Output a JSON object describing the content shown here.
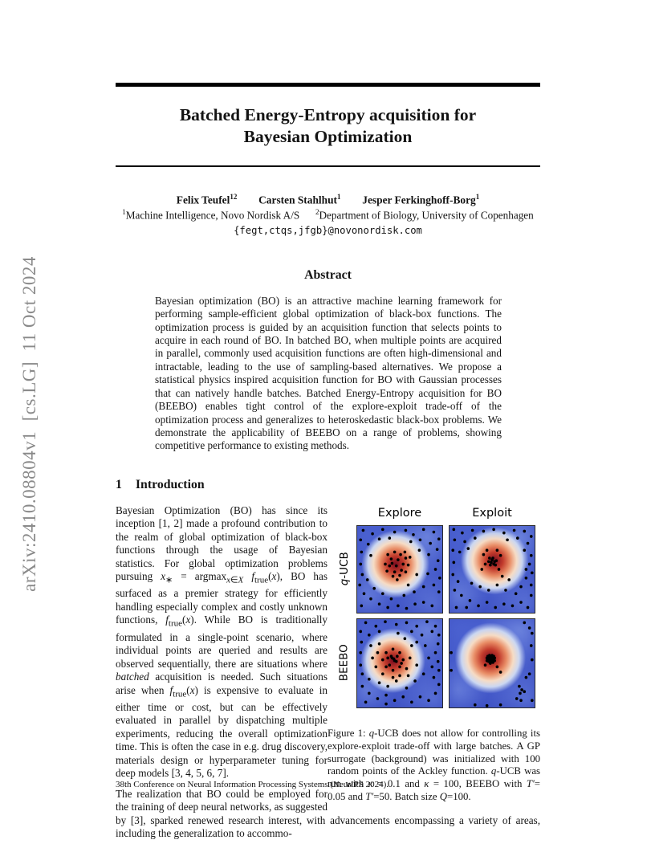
{
  "arxiv_stamp": "arXiv:2410.08804v1  [cs.LG]  11 Oct 2024",
  "title": {
    "lines": [
      "Batched Energy-Entropy acquisition for",
      "Bayesian Optimization"
    ]
  },
  "authors": {
    "names_html": "Felix Teufel<sup>12</sup>&emsp;&emsp;Carsten Stahlhut<sup>1</sup>&emsp;&emsp;Jesper Ferkinghoff-Borg<sup>1</sup>",
    "affiliations_html": "<sup>1</sup>Machine Intelligence, Novo Nordisk A/S&emsp;&ensp;<sup>2</sup>Department of Biology, University of Copenhagen",
    "email": "{fegt,ctqs,jfgb}@novonordisk.com"
  },
  "abstract": {
    "heading": "Abstract",
    "body": "Bayesian optimization (BO) is an attractive machine learning framework for performing sample-efficient global optimization of black-box functions. The optimization process is guided by an acquisition function that selects points to acquire in each round of BO. In batched BO, when multiple points are acquired in parallel, commonly used acquisition functions are often high-dimensional and intractable, leading to the use of sampling-based alternatives. We propose a statistical physics inspired acquisition function for BO with Gaussian processes that can natively handle batches. Batched Energy-Entropy acquisition for BO (BEEBO) enables tight control of the explore-exploit trade-off of the optimization process and generalizes to heteroskedastic black-box problems. We demonstrate the applicability of BEEBO on a range of problems, showing competitive performance to existing methods."
  },
  "section1": {
    "number": "1",
    "title": "Introduction"
  },
  "intro": {
    "p1_html": "Bayesian Optimization (BO) has since its inception [1, 2] made a profound contribution to the realm of global optimization of black-box functions through the usage of Bayesian statistics. For global optimization problems pursuing <i>x</i><sub>∗</sub> = argmax<sub><i>x</i>∈<i>X</i></sub> <i>f</i><sub>true</sub>(<i>x</i>), BO has surfaced as a premier strategy for efficiently handling especially complex and costly unknown functions, <i>f</i><sub>true</sub>(<i>x</i>). While BO is traditionally formulated in a single-point scenario, where individual points are queried and results are observed sequentially, there are situations where <i>batched</i> acquisition is needed. Such situations arise when <i>f</i><sub>true</sub>(<i>x</i>) is expensive to evaluate in either time or cost, but can be effectively evaluated in parallel by dispatching multiple experiments, reducing the overall optimization time. This is often the case in e.g. drug discovery, materials design or hyperparameter tuning for deep models [3, 4, 5, 6, 7].",
    "p2_html": "The realization that BO could be employed for the training of deep neural networks, as suggested by [3], sparked renewed research interest, with advancements encompassing a variety of areas, including the generalization to accommo-"
  },
  "figure1": {
    "caption_html": "Figure 1: <i>q</i>-UCB does not allow for controlling its explore-exploit trade-off with large batches. A GP surrogate (background) was initialized with 100 random points of the Ackley function. <i>q</i>-UCB was run with <i>κ</i> = 0.1 and <i>κ</i> = 100, BEEBO with <i>T′</i>= 0.05 and <i>T′</i>=50. Batch size <i>Q</i>=100."
  },
  "footer": "38th Conference on Neural Information Processing Systems (NeurIPS 2024).",
  "chart_data": {
    "type": "heatmap",
    "figure_label": "Figure 1",
    "col_labels": [
      "Explore",
      "Exploit"
    ],
    "row_labels": [
      "q-UCB",
      "BEEBO"
    ],
    "row_labels_html": [
      "<i>q</i>-UCB",
      "BEEBO"
    ],
    "background": "GP surrogate mean on Ackley function, coolwarm colormap; black dots are acquired batch points",
    "colors": {
      "hot": "#7a0c20",
      "warm": "#c23b2c",
      "salmon": "#e98e67",
      "cream": "#f6dcc5",
      "pale": "#ccd8f2",
      "blue_base": "#4156c8",
      "blue_deep": "#3b4cc0",
      "blue_light": "#7289e0",
      "dot": "#000000",
      "border": "#2a2a2a"
    },
    "panels": [
      {
        "row": "q-UCB",
        "col": "Explore",
        "hotspot": [
          45,
          44
        ],
        "radius": 44,
        "points": [
          7,
          5,
          18,
          9,
          30,
          4,
          44,
          7,
          57,
          5,
          66,
          10,
          78,
          4,
          90,
          7,
          96,
          15,
          4,
          16,
          13,
          21,
          26,
          15,
          38,
          14,
          63,
          18,
          74,
          16,
          86,
          20,
          94,
          27,
          5,
          30,
          16,
          34,
          73,
          28,
          84,
          33,
          95,
          40,
          4,
          44,
          92,
          50,
          97,
          60,
          6,
          56,
          3,
          68,
          12,
          62,
          90,
          68,
          96,
          76,
          8,
          78,
          16,
          84,
          26,
          90,
          5,
          92,
          36,
          94,
          48,
          92,
          58,
          95,
          68,
          90,
          78,
          88,
          88,
          92,
          40,
          84,
          55,
          80,
          67,
          76,
          78,
          70,
          30,
          78,
          20,
          72,
          60,
          68,
          70,
          56,
          83,
          55,
          36,
          33,
          44,
          30,
          51,
          33,
          57,
          37,
          60,
          45,
          57,
          53,
          50,
          57,
          42,
          58,
          35,
          52,
          33,
          44,
          40,
          38,
          48,
          39,
          54,
          44,
          52,
          51,
          44,
          53,
          38,
          46,
          46,
          46,
          41,
          43,
          56,
          30,
          62,
          36,
          47,
          62
        ]
      },
      {
        "row": "q-UCB",
        "col": "Exploit",
        "hotspot": [
          53,
          40
        ],
        "radius": 44,
        "points": [
          5,
          4,
          15,
          8,
          27,
          5,
          40,
          6,
          52,
          4,
          64,
          8,
          76,
          5,
          88,
          6,
          96,
          12,
          6,
          16,
          18,
          18,
          30,
          14,
          68,
          16,
          80,
          14,
          92,
          20,
          4,
          28,
          12,
          30,
          22,
          26,
          88,
          28,
          96,
          34,
          5,
          42,
          94,
          44,
          97,
          54,
          4,
          56,
          10,
          64,
          90,
          60,
          96,
          68,
          6,
          74,
          14,
          80,
          24,
          86,
          34,
          92,
          44,
          88,
          54,
          94,
          64,
          90,
          74,
          92,
          84,
          88,
          92,
          94,
          96,
          80,
          78,
          78,
          66,
          74,
          56,
          68,
          46,
          74,
          36,
          70,
          26,
          66,
          84,
          70,
          70,
          62,
          62,
          58,
          20,
          94,
          8,
          94,
          90,
          50,
          47,
          37,
          50,
          39,
          53,
          41,
          49,
          42,
          52,
          44,
          55,
          40,
          46,
          41,
          51,
          37,
          54,
          45,
          48,
          45,
          40,
          33,
          42,
          44,
          58,
          50,
          38,
          50,
          60,
          34,
          44,
          28,
          56,
          28
        ]
      },
      {
        "row": "BEEBO",
        "col": "Explore",
        "hotspot": [
          42,
          47
        ],
        "radius": 42,
        "points": [
          10,
          4,
          22,
          8,
          33,
          3,
          46,
          6,
          58,
          4,
          70,
          8,
          82,
          3,
          92,
          8,
          96,
          18,
          4,
          14,
          14,
          18,
          26,
          14,
          64,
          14,
          76,
          18,
          88,
          14,
          95,
          28,
          5,
          26,
          16,
          30,
          26,
          28,
          70,
          26,
          80,
          30,
          92,
          38,
          4,
          38,
          95,
          48,
          4,
          52,
          96,
          58,
          6,
          62,
          14,
          68,
          90,
          66,
          96,
          74,
          6,
          76,
          14,
          84,
          24,
          90,
          34,
          86,
          44,
          92,
          54,
          88,
          64,
          94,
          74,
          88,
          84,
          92,
          92,
          84,
          34,
          96,
          10,
          94,
          58,
          78,
          68,
          70,
          78,
          62,
          60,
          64,
          70,
          52,
          62,
          44,
          58,
          56,
          26,
          72,
          36,
          76,
          46,
          70,
          30,
          62,
          22,
          54,
          18,
          44,
          24,
          38,
          84,
          44,
          88,
          54,
          50,
          64,
          42,
          66,
          64,
          30,
          56,
          22,
          48,
          16,
          40,
          42,
          43,
          45,
          46,
          48,
          44,
          47,
          41,
          44,
          34,
          38,
          42,
          34,
          50,
          38,
          54,
          46,
          50,
          54,
          42,
          58,
          34,
          54,
          30,
          46,
          38,
          52,
          47,
          42,
          52,
          50,
          36,
          44
        ]
      },
      {
        "row": "BEEBO",
        "col": "Exploit",
        "hotspot": [
          48,
          44
        ],
        "radius": 46,
        "points": [
          45,
          42,
          47,
          41,
          49,
          42,
          51,
          43,
          46,
          44,
          48,
          44,
          50,
          44,
          52,
          45,
          45,
          46,
          47,
          46,
          49,
          46,
          51,
          47,
          46,
          48,
          48,
          48,
          50,
          48,
          53,
          44,
          44,
          44,
          48,
          42,
          50,
          41,
          47,
          43,
          49,
          45,
          51,
          45,
          46,
          45,
          44,
          47,
          52,
          42,
          53,
          47,
          48,
          50,
          51,
          49,
          42,
          52,
          56,
          54,
          60,
          60,
          2,
          38,
          2,
          58,
          94,
          10,
          97,
          16,
          88,
          4,
          96,
          30,
          97,
          46,
          94,
          62,
          90,
          66,
          82,
          76,
          85,
          80,
          83,
          84,
          88,
          82,
          79,
          90,
          84,
          92,
          60,
          97,
          30,
          97,
          44,
          98,
          97,
          92
        ]
      }
    ]
  }
}
